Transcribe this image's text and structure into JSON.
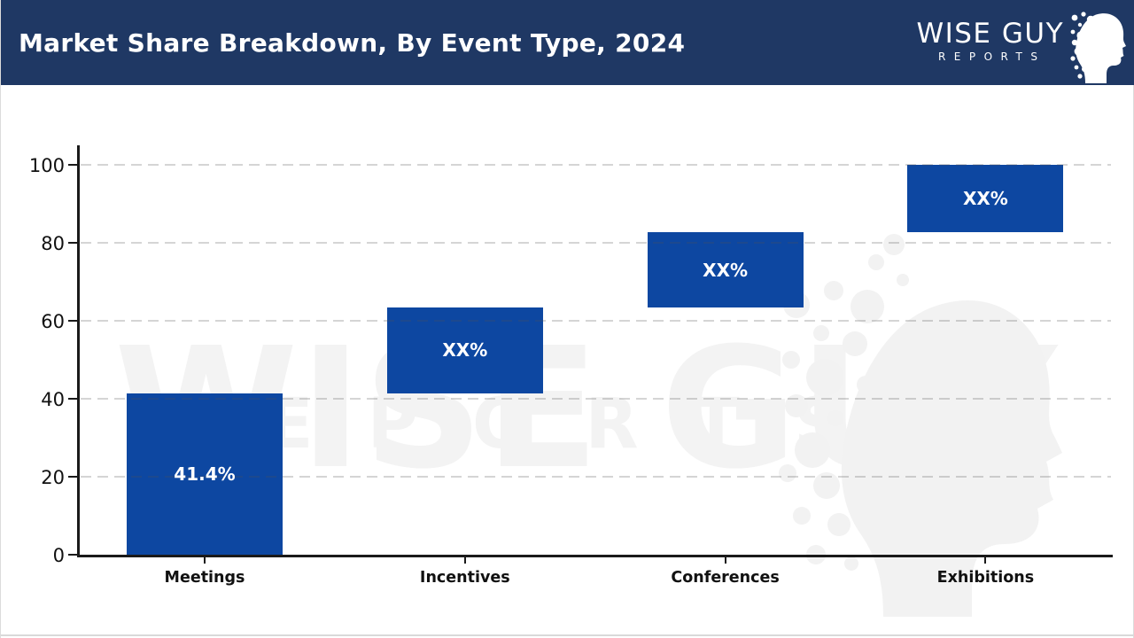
{
  "header": {
    "title": "Market Share Breakdown, By Event Type, 2024",
    "logo": {
      "line1": "WISE GUY",
      "line2": "REPORTS"
    }
  },
  "watermark": {
    "line1": "WISE GUY",
    "line2": "R E P O R T S"
  },
  "chart_data": {
    "type": "bar",
    "variant": "waterfall",
    "title": "Market Share Breakdown, By Event Type, 2024",
    "categories": [
      "Meetings",
      "Incentives",
      "Conferences",
      "Exhibitions"
    ],
    "segments": [
      {
        "category": "Meetings",
        "start": 0,
        "end": 41.4,
        "label": "41.4%"
      },
      {
        "category": "Incentives",
        "start": 41.4,
        "end": 63.4,
        "label": "XX%"
      },
      {
        "category": "Conferences",
        "start": 63.4,
        "end": 82.7,
        "label": "XX%"
      },
      {
        "category": "Exhibitions",
        "start": 82.7,
        "end": 100,
        "label": "XX%"
      }
    ],
    "ylim": [
      0,
      105
    ],
    "yticks": [
      0,
      20,
      40,
      60,
      80,
      100
    ],
    "xlabel": "",
    "ylabel": "",
    "grid": "horizontal-dashed",
    "legend": "none",
    "bar_color": "#0d47a1",
    "bar_label_color": "#ffffff",
    "header_bg_color": "#1f3864",
    "axis_color": "#1a1a1a",
    "watermark_color": "#f3f3f3"
  }
}
